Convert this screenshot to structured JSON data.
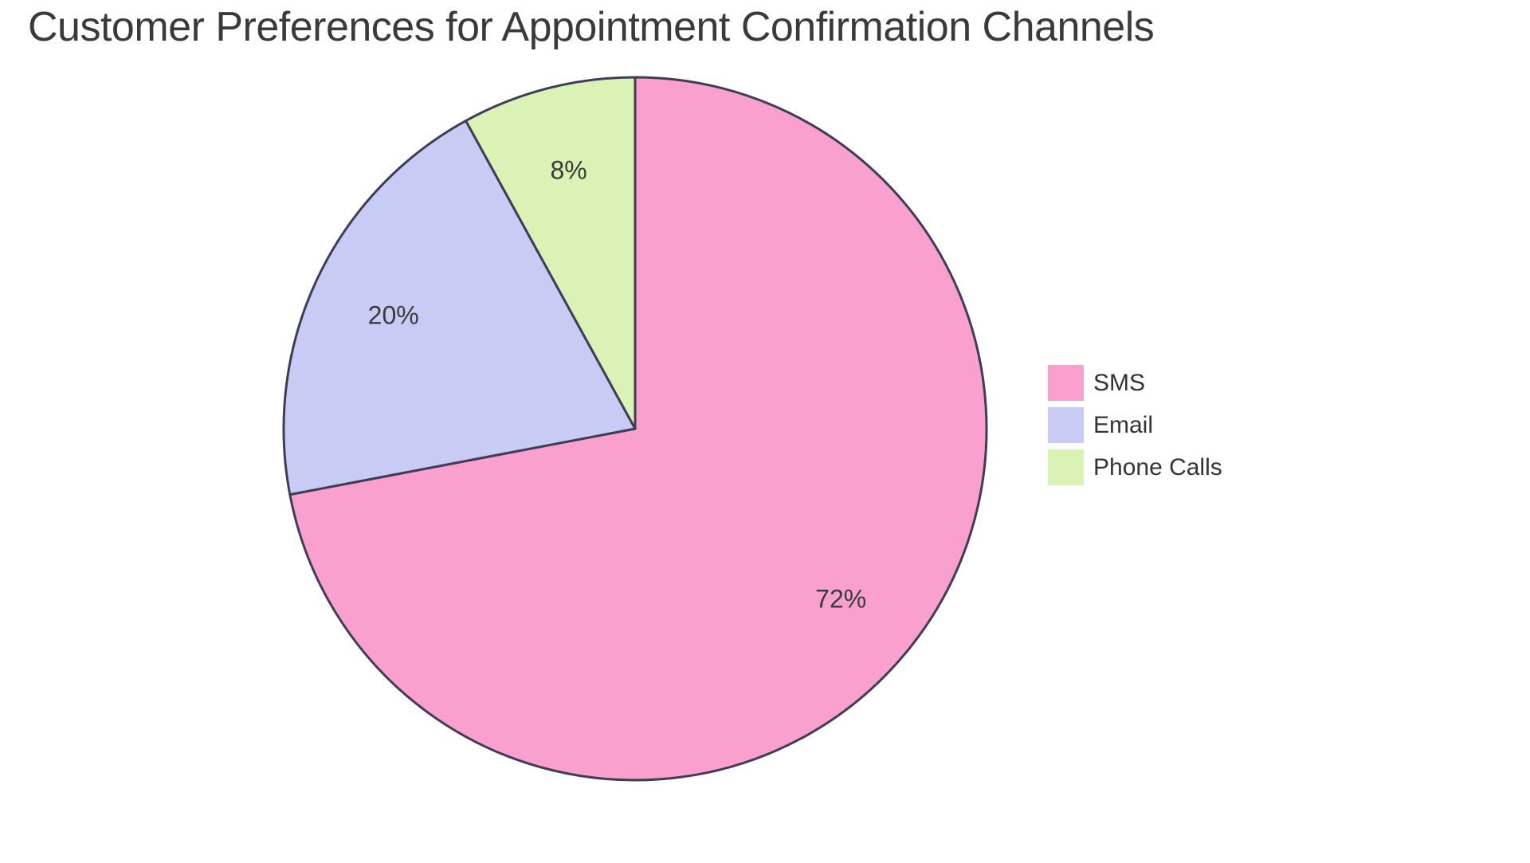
{
  "chart_data": {
    "type": "pie",
    "title": "Customer Preferences for Appointment Confirmation Channels",
    "series": [
      {
        "name": "SMS",
        "value": 72,
        "percent_label": "72%",
        "color": "#F9A0CE"
      },
      {
        "name": "Email",
        "value": 20,
        "percent_label": "20%",
        "color": "#C8CCF4"
      },
      {
        "name": "Phone Calls",
        "value": 8,
        "percent_label": "8%",
        "color": "#DAF2B6"
      }
    ],
    "total": 100,
    "start_angle": "top",
    "direction": "clockwise",
    "stroke_color": "#3F3D56",
    "stroke_width": 3,
    "label_color": "#3A3A3A",
    "title_color": "#3A3A3A",
    "legend_position": "right",
    "background": "#FFFFFF"
  }
}
